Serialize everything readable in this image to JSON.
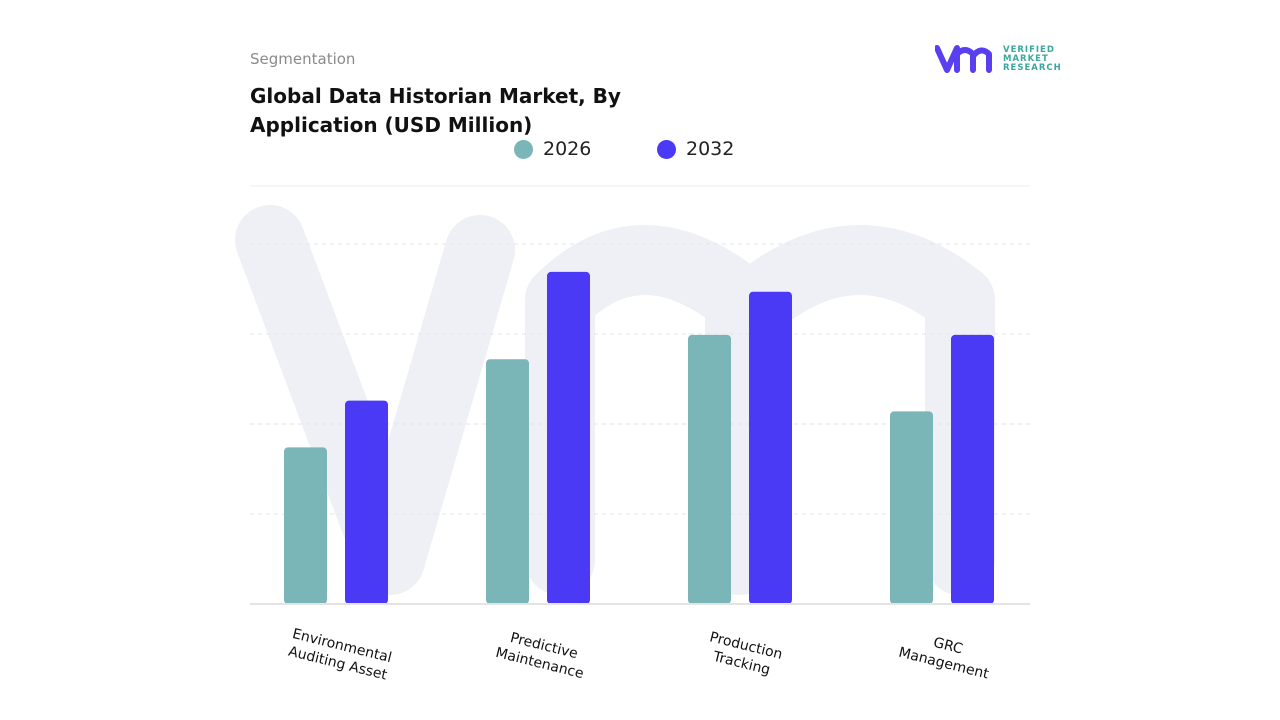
{
  "header": {
    "segment_label": "Segmentation",
    "title": "Global Data Historian Market, By Application (USD Million)"
  },
  "logo": {
    "lines": [
      "VERIFIED",
      "MARKET",
      "RESEARCH"
    ],
    "mark_color": "#5a3ff0",
    "text_color": "#3aa7a0"
  },
  "chart_data": {
    "type": "bar",
    "title": "Global Data Historian Market, By Application (USD Million)",
    "categories": [
      "Environmental Auditing Asset",
      "Predictive Maintenance",
      "Production Tracking",
      "GRC Management"
    ],
    "category_lines": [
      [
        "Environmental",
        "Auditing Asset"
      ],
      [
        "Predictive",
        "Maintenance"
      ],
      [
        "Production",
        "Tracking"
      ],
      [
        "GRC",
        "Management"
      ]
    ],
    "series": [
      {
        "name": "2026",
        "color": "#7ab6b8",
        "values": [
          1.74,
          2.72,
          2.99,
          2.14
        ]
      },
      {
        "name": "2032",
        "color": "#4a39f5",
        "values": [
          2.26,
          3.69,
          3.47,
          2.99
        ]
      }
    ],
    "ylim": [
      0,
      4.5
    ],
    "grid": true,
    "legend": "top",
    "xlabel": "",
    "ylabel": ""
  }
}
